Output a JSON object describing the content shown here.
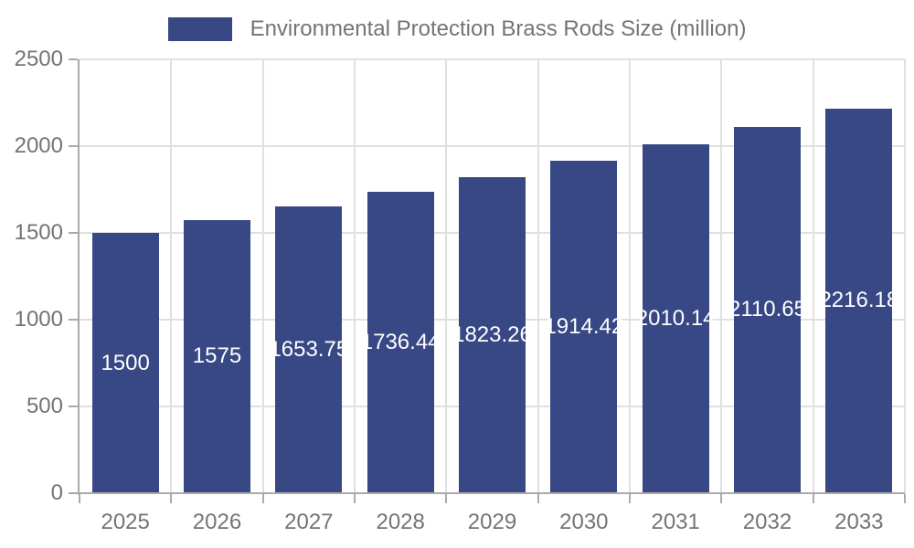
{
  "chart_data": {
    "type": "bar",
    "legend": "Environmental Protection Brass Rods Size (million)",
    "categories": [
      "2025",
      "2026",
      "2027",
      "2028",
      "2029",
      "2030",
      "2031",
      "2032",
      "2033"
    ],
    "values": [
      1500,
      1575,
      1653.75,
      1736.44,
      1823.26,
      1914.42,
      2010.14,
      2110.65,
      2216.18
    ],
    "bar_labels": [
      "1500",
      "1575",
      "1653.75",
      "1736.44",
      "1823.26",
      "1914.42",
      "2010.14",
      "2110.65",
      "2216.18"
    ],
    "ylim": [
      0,
      2500
    ],
    "yticks": [
      0,
      500,
      1000,
      1500,
      2000,
      2500
    ],
    "ytick_labels": [
      "0",
      "500",
      "1000",
      "1500",
      "2000",
      "2500"
    ],
    "grid": true,
    "legend_position": "top-center",
    "label_position": "inside-center",
    "colors": {
      "bar": "#384885",
      "bar_label": "#ffffff",
      "axis_text": "#747474",
      "axis_line": "#aaaaaa",
      "gridline": "#e0e0e0",
      "background": "#ffffff"
    }
  }
}
